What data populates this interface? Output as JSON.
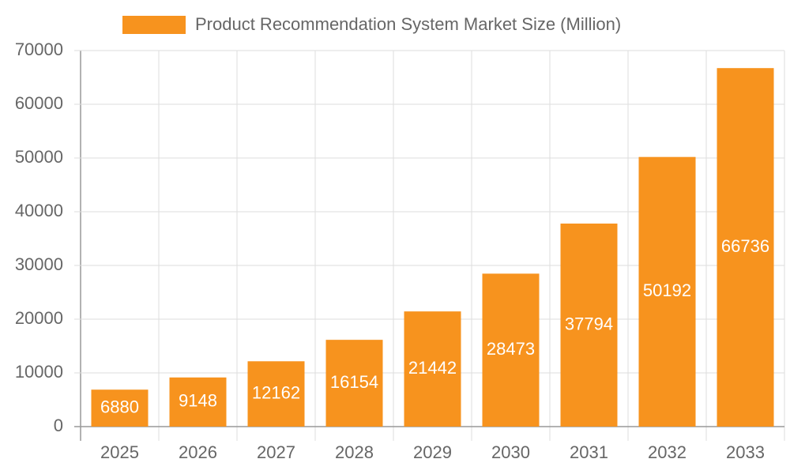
{
  "chart_data": {
    "type": "bar",
    "categories": [
      "2025",
      "2026",
      "2027",
      "2028",
      "2029",
      "2030",
      "2031",
      "2032",
      "2033"
    ],
    "series": [
      {
        "name": "Product Recommendation System Market Size (Million)",
        "color": "#f7931e",
        "values": [
          6880,
          9148,
          12162,
          16154,
          21442,
          28473,
          37794,
          50192,
          66736
        ]
      }
    ],
    "ylim": [
      0,
      70000
    ],
    "yticks": [
      0,
      10000,
      20000,
      30000,
      40000,
      50000,
      60000,
      70000
    ],
    "grid": true,
    "legend": "top",
    "data_labels": true
  }
}
